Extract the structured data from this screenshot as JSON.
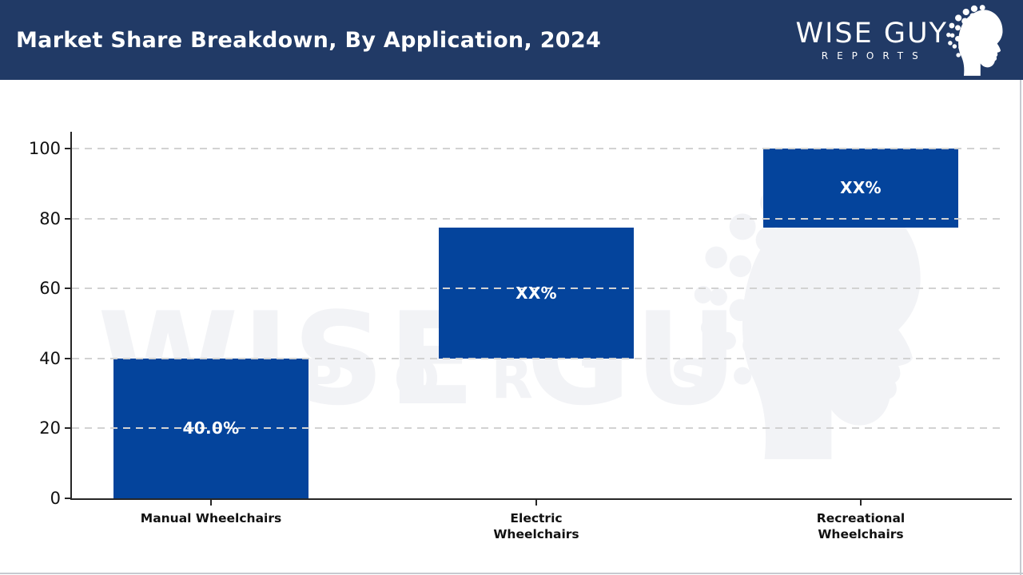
{
  "header": {
    "title": "Market Share Breakdown, By Application, 2024",
    "logo": {
      "line1": "WISE GUY",
      "line2": "REPORTS"
    }
  },
  "watermark": {
    "line1": "WISE GUY",
    "line2": "REPORTS"
  },
  "colors": {
    "header_bg": "#213a66",
    "bar": "#04449c",
    "on_bar_label": "#ffffff",
    "grid": "#d2d2d2",
    "axis": "#262626",
    "tick_text": "#111111",
    "watermark": "#f2f3f6",
    "frame": "#c6cad0"
  },
  "chart_data": {
    "type": "bar",
    "subtype": "stacked-waterfall-percentage",
    "title": "Market Share Breakdown, By Application, 2024",
    "categories": [
      "Manual Wheelchairs",
      "Electric\nWheelchairs",
      "Recreational\nWheelchairs"
    ],
    "bars": [
      {
        "category": "Manual Wheelchairs",
        "start": 0,
        "end": 40,
        "label": "40.0%"
      },
      {
        "category": "Electric\nWheelchairs",
        "start": 40,
        "end": 77.5,
        "label": "XX%"
      },
      {
        "category": "Recreational\nWheelchairs",
        "start": 77.5,
        "end": 100,
        "label": "XX%"
      }
    ],
    "ylim": [
      0,
      100
    ],
    "yticks": [
      0,
      20,
      40,
      60,
      80,
      100
    ],
    "xlabel": "",
    "ylabel": "",
    "grid": "dashed horizontal gridlines drawn above bars",
    "legend": "none"
  }
}
